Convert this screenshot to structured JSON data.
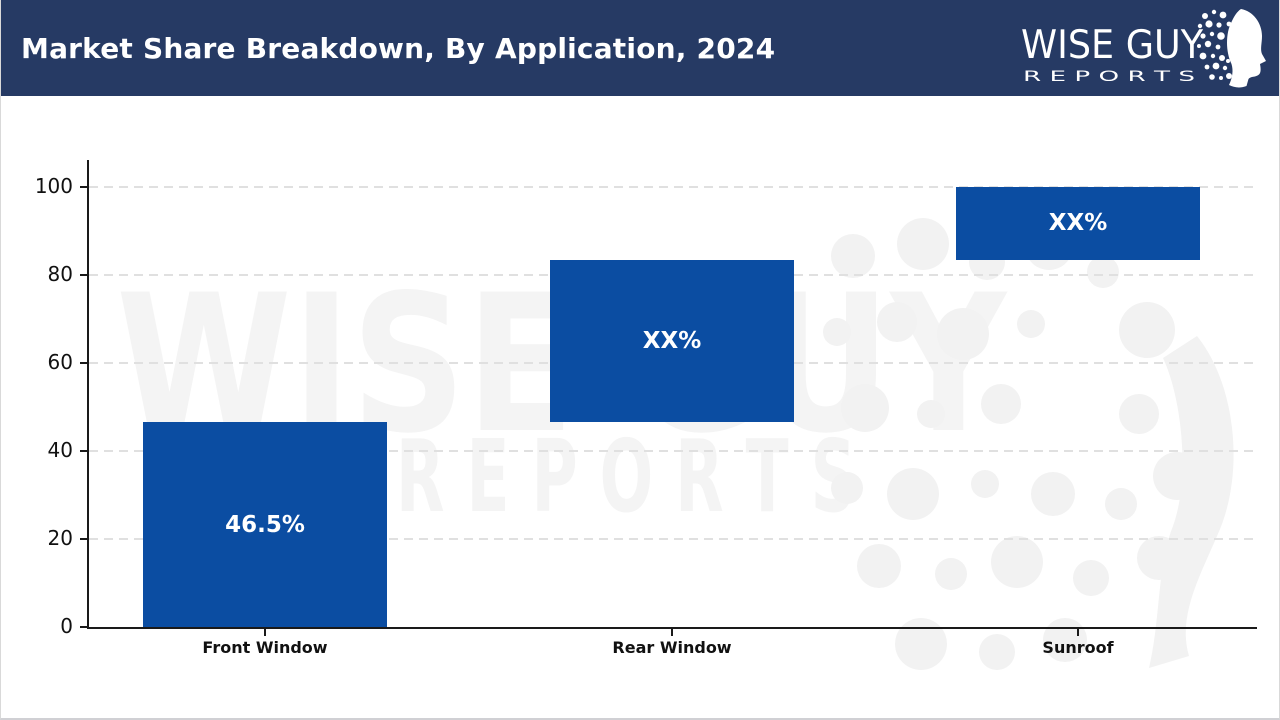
{
  "header": {
    "title": "Market Share Breakdown, By Application, 2024",
    "logo": {
      "line1": "WISE GUY",
      "line2": "R E P O R T S"
    }
  },
  "watermark": {
    "line1": "WISE GUY",
    "line2": "R E P O R T S"
  },
  "chart_data": {
    "type": "bar",
    "subtype": "floating-segment-bars (waterfall-style market share breakdown)",
    "title": "Market Share Breakdown, By Application, 2024",
    "categories": [
      "Front Window",
      "Rear Window",
      "Sunroof"
    ],
    "series": [
      {
        "name": "Market share (%)",
        "segments": [
          {
            "category": "Front Window",
            "start": 0,
            "end": 46.5,
            "label": "46.5%"
          },
          {
            "category": "Rear Window",
            "start": 46.5,
            "end": 83.5,
            "label": "XX%"
          },
          {
            "category": "Sunroof",
            "start": 83.5,
            "end": 100,
            "label": "XX%"
          }
        ]
      }
    ],
    "xlabel": "",
    "ylabel": "",
    "yticks": [
      0,
      20,
      40,
      60,
      80,
      100
    ],
    "ylim": [
      0,
      105
    ],
    "grid": "horizontal-dashed",
    "legend": "none",
    "bar_color": "#0b4da2",
    "bar_label_color": "#ffffff"
  },
  "colors": {
    "header_bg": "#263a64",
    "bar": "#0b4da2",
    "grid": "#e0e0e0",
    "axis": "#1a1a1a",
    "watermark": "#f4f4f4"
  }
}
